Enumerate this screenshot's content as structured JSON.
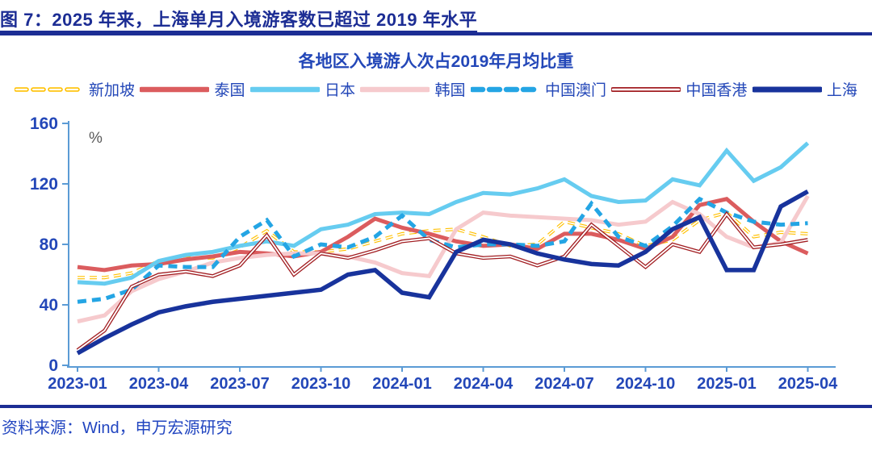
{
  "figure_header": {
    "title": "图 7：2025 年来，上海单月入境游客数已超过 2019 年水平"
  },
  "footer": {
    "source": "资料来源：Wind，申万宏源研究"
  },
  "colors": {
    "header_navy": "#1c2d94",
    "label_blue": "#2347b8",
    "axis_line_blue": "#5b9bd5",
    "unit_gray": "#595959"
  },
  "chart_data": {
    "type": "line",
    "title": "各地区入境游人次占2019年月均比重",
    "unit_label": "%",
    "ylim": [
      0,
      160
    ],
    "yticks": [
      0,
      40,
      80,
      120,
      160
    ],
    "x_tick_step": 3,
    "x": [
      "2023-01",
      "2023-02",
      "2023-03",
      "2023-04",
      "2023-05",
      "2023-06",
      "2023-07",
      "2023-08",
      "2023-09",
      "2023-10",
      "2023-11",
      "2023-12",
      "2024-01",
      "2024-02",
      "2024-03",
      "2024-04",
      "2024-05",
      "2024-06",
      "2024-07",
      "2024-08",
      "2024-09",
      "2024-10",
      "2024-11",
      "2024-12",
      "2025-01",
      "2025-02",
      "2025-03",
      "2025-04"
    ],
    "legend_position": "top",
    "grid": false,
    "series": [
      {
        "id": "singapore",
        "name": "新加坡",
        "color": "#ffc000",
        "dashed": true,
        "hollow": true,
        "width": 4,
        "values": [
          58,
          58,
          61,
          69,
          71,
          71,
          78,
          89,
          75,
          75,
          77,
          82,
          87,
          89,
          90,
          85,
          79,
          80,
          95,
          91,
          87,
          79,
          83,
          96,
          101,
          85,
          88,
          87
        ]
      },
      {
        "id": "thailand",
        "name": "泰国",
        "color": "#db5c5e",
        "dashed": false,
        "hollow": false,
        "width": 5,
        "values": [
          65,
          63,
          66,
          67,
          70,
          72,
          75,
          74,
          72,
          75,
          85,
          97,
          91,
          87,
          82,
          79,
          80,
          77,
          87,
          87,
          83,
          77,
          85,
          106,
          110,
          95,
          82,
          74
        ]
      },
      {
        "id": "japan",
        "name": "日本",
        "color": "#66ccf0",
        "dashed": false,
        "hollow": false,
        "width": 5,
        "values": [
          55,
          54,
          58,
          69,
          73,
          75,
          79,
          82,
          79,
          90,
          93,
          100,
          101,
          100,
          108,
          114,
          113,
          117,
          123,
          112,
          108,
          109,
          123,
          119,
          142,
          122,
          131,
          147
        ]
      },
      {
        "id": "korea",
        "name": "韩国",
        "color": "#f6cacd",
        "dashed": false,
        "hollow": false,
        "width": 5,
        "values": [
          29,
          33,
          49,
          57,
          62,
          68,
          71,
          73,
          74,
          74,
          72,
          68,
          61,
          59,
          90,
          101,
          99,
          98,
          97,
          96,
          93,
          95,
          108,
          100,
          85,
          78,
          81,
          112
        ]
      },
      {
        "id": "macau",
        "name": "中国澳门",
        "color": "#24a5e4",
        "dashed": true,
        "hollow": false,
        "width": 5,
        "values": [
          42,
          44,
          50,
          66,
          65,
          65,
          85,
          96,
          72,
          80,
          78,
          85,
          99,
          83,
          78,
          80,
          80,
          79,
          82,
          107,
          85,
          79,
          92,
          110,
          101,
          95,
          93,
          94
        ]
      },
      {
        "id": "hongkong",
        "name": "中国香港",
        "color": "#a21e22",
        "dashed": false,
        "hollow": true,
        "width": 4.5,
        "values": [
          10,
          23,
          52,
          60,
          62,
          59,
          66,
          86,
          60,
          74,
          71,
          76,
          82,
          84,
          74,
          71,
          72,
          66,
          72,
          93,
          79,
          65,
          80,
          75,
          100,
          78,
          80,
          83
        ]
      },
      {
        "id": "shanghai",
        "name": "上海",
        "color": "#18339c",
        "dashed": false,
        "hollow": false,
        "width": 5.5,
        "values": [
          8,
          18,
          27,
          35,
          39,
          42,
          44,
          46,
          48,
          50,
          60,
          63,
          48,
          45,
          75,
          83,
          80,
          74,
          70,
          67,
          66,
          75,
          90,
          98,
          63,
          63,
          105,
          115
        ]
      }
    ]
  }
}
